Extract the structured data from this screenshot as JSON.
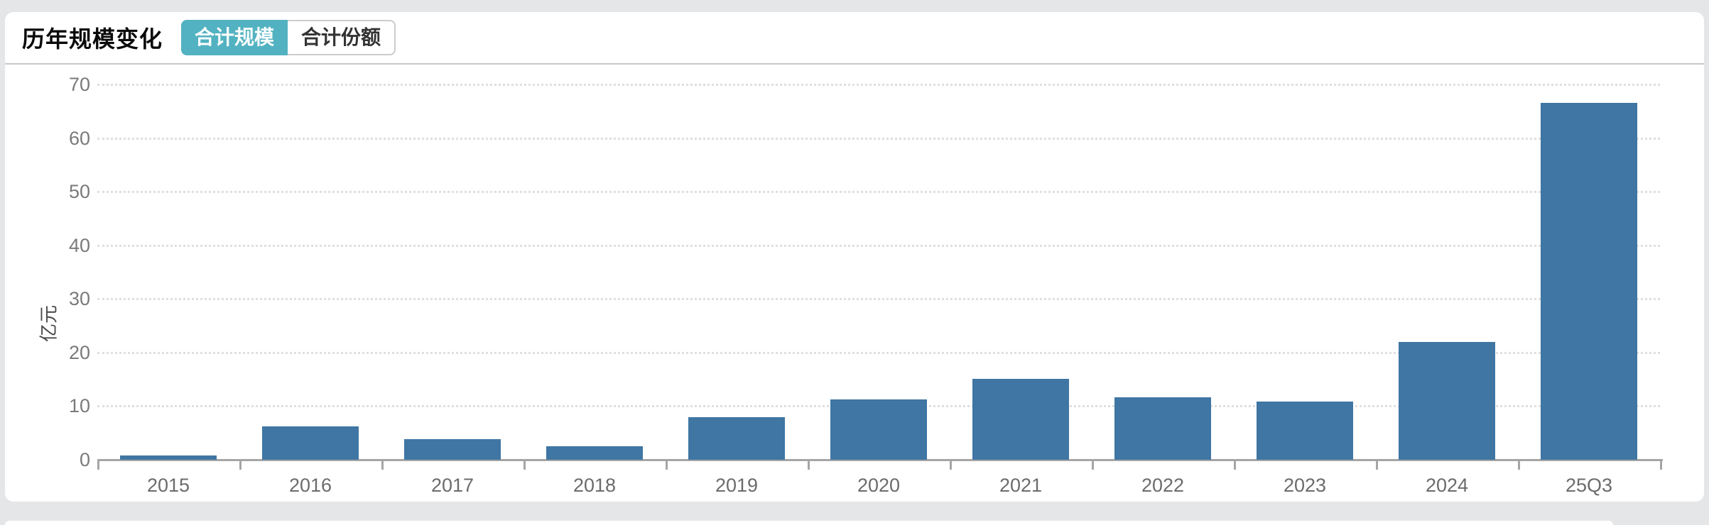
{
  "header": {
    "title": "历年规模变化",
    "toggle": {
      "active_color": "#52b2c1",
      "options": [
        {
          "name": "total-scale",
          "label": "合计规模",
          "selected": true
        },
        {
          "name": "total-share",
          "label": "合计份额",
          "selected": false
        }
      ]
    }
  },
  "chart_data": {
    "type": "bar",
    "title": "历年规模变化",
    "xlabel": "",
    "ylabel": "亿元",
    "categories": [
      "2015",
      "2016",
      "2017",
      "2018",
      "2019",
      "2020",
      "2021",
      "2022",
      "2023",
      "2024",
      "25Q3"
    ],
    "values": [
      0.8,
      6.2,
      3.8,
      2.5,
      7.9,
      11.3,
      15.1,
      11.7,
      10.9,
      21.9,
      66.5
    ],
    "ylim": [
      0,
      70
    ],
    "yticks": [
      0,
      10,
      20,
      30,
      40,
      50,
      60,
      70
    ],
    "bar_color": "#3f76a3",
    "grid": "horizontal-dotted",
    "legend": "none"
  }
}
